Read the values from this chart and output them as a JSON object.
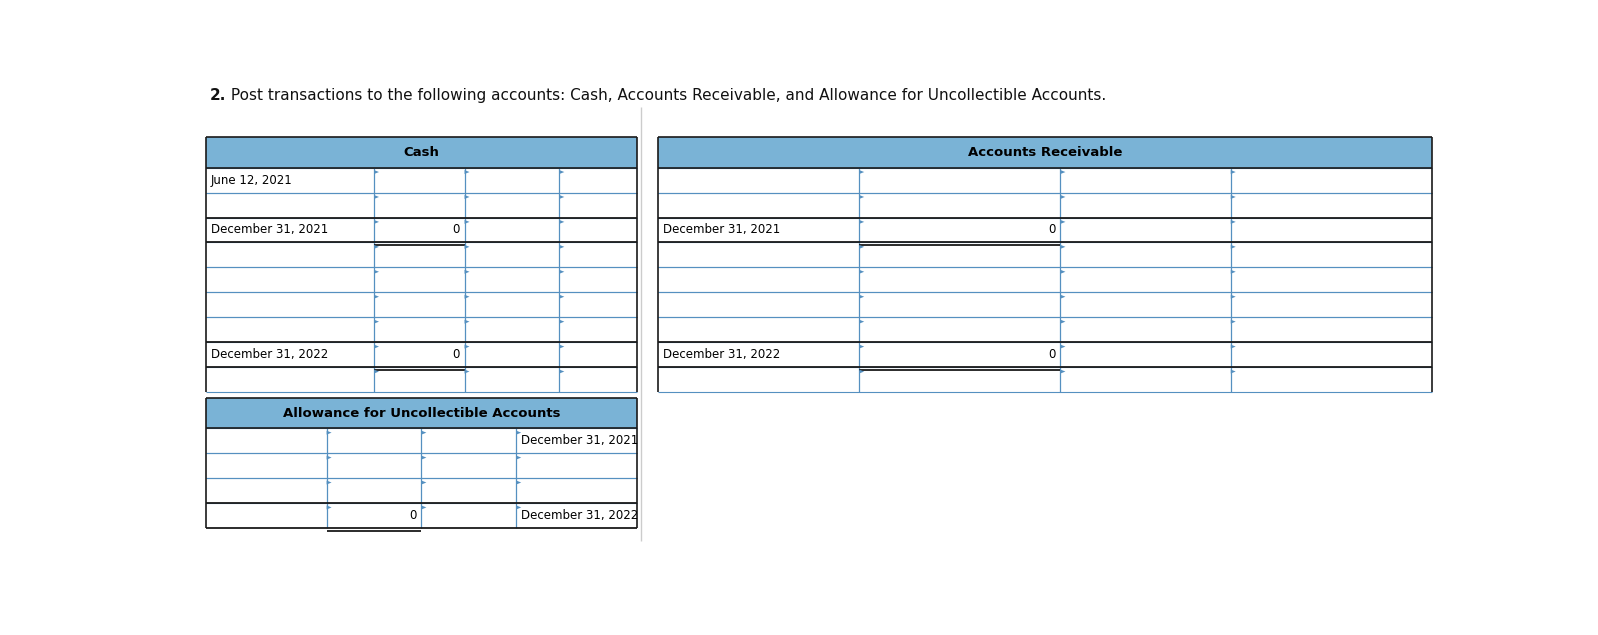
{
  "title_bold": "2.",
  "title_rest": " Post transactions to the following accounts: Cash, Accounts Receivable, and Allowance for Uncollectible Accounts.",
  "header_color": "#7ab3d6",
  "cell_bg": "#ffffff",
  "border_blue": "#5590c0",
  "border_dark": "#1a1a1a",
  "cash_title": "Cash",
  "ar_title": "Accounts Receivable",
  "allowance_title": "Allowance for Uncollectible Accounts",
  "fig_w": 15.98,
  "fig_h": 6.35,
  "dpi": 100
}
